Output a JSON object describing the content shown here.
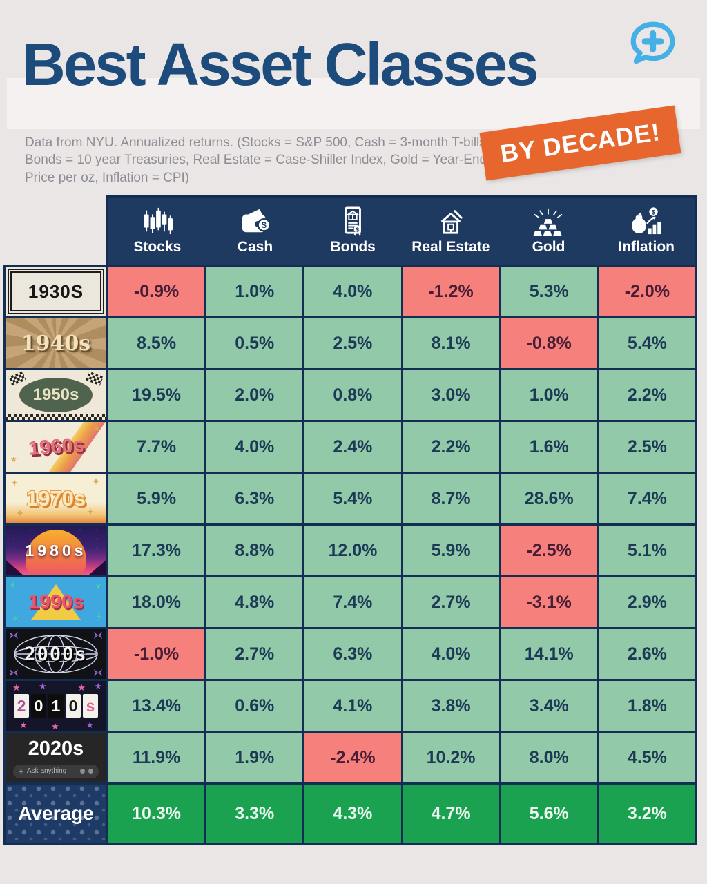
{
  "brand": {
    "icon": "speech-bubble-plus-icon",
    "color": "#45b0e5"
  },
  "header": {
    "title": "Best Asset Classes",
    "badge": "BY DECADE!",
    "subtitle": "Data from NYU. Annualized returns. (Stocks = S&P 500, Cash = 3-month T-bills, Bonds = 10 year Treasuries, Real Estate = Case-Shiller Index, Gold = Year-End Price per oz, Inflation = CPI)"
  },
  "colors": {
    "background": "#eae6e5",
    "title": "#1d4b7c",
    "badge_bg": "#e6662e",
    "header_bg": "#1e3a61",
    "grid_border": "#132e52",
    "cell_green": "#92c9a9",
    "cell_red": "#f5807c",
    "average_green": "#1aa251",
    "cell_text": "#1c3a55",
    "negative_text": "#4a1d36"
  },
  "table": {
    "columns": [
      {
        "label": "Stocks",
        "icon": "candlestick-chart-icon"
      },
      {
        "label": "Cash",
        "icon": "wallet-icon"
      },
      {
        "label": "Bonds",
        "icon": "bond-certificate-icon"
      },
      {
        "label": "Real Estate",
        "icon": "house-icon"
      },
      {
        "label": "Gold",
        "icon": "gold-bars-icon"
      },
      {
        "label": "Inflation",
        "icon": "money-bag-chart-icon"
      }
    ],
    "rows": [
      {
        "decade": "1930S",
        "values": [
          {
            "v": "-0.9%",
            "neg": true
          },
          {
            "v": "1.0%"
          },
          {
            "v": "4.0%"
          },
          {
            "v": "-1.2%",
            "neg": true
          },
          {
            "v": "5.3%"
          },
          {
            "v": "-2.0%",
            "neg": true
          }
        ]
      },
      {
        "decade": "1940s",
        "values": [
          {
            "v": "8.5%"
          },
          {
            "v": "0.5%"
          },
          {
            "v": "2.5%"
          },
          {
            "v": "8.1%"
          },
          {
            "v": "-0.8%",
            "neg": true
          },
          {
            "v": "5.4%"
          }
        ]
      },
      {
        "decade": "1950s",
        "values": [
          {
            "v": "19.5%"
          },
          {
            "v": "2.0%"
          },
          {
            "v": "0.8%"
          },
          {
            "v": "3.0%"
          },
          {
            "v": "1.0%"
          },
          {
            "v": "2.2%"
          }
        ]
      },
      {
        "decade": "1960s",
        "values": [
          {
            "v": "7.7%"
          },
          {
            "v": "4.0%"
          },
          {
            "v": "2.4%"
          },
          {
            "v": "2.2%"
          },
          {
            "v": "1.6%"
          },
          {
            "v": "2.5%"
          }
        ]
      },
      {
        "decade": "1970s",
        "values": [
          {
            "v": "5.9%"
          },
          {
            "v": "6.3%"
          },
          {
            "v": "5.4%"
          },
          {
            "v": "8.7%"
          },
          {
            "v": "28.6%"
          },
          {
            "v": "7.4%"
          }
        ]
      },
      {
        "decade": "1980s",
        "values": [
          {
            "v": "17.3%"
          },
          {
            "v": "8.8%"
          },
          {
            "v": "12.0%"
          },
          {
            "v": "5.9%"
          },
          {
            "v": "-2.5%",
            "neg": true
          },
          {
            "v": "5.1%"
          }
        ]
      },
      {
        "decade": "1990s",
        "values": [
          {
            "v": "18.0%"
          },
          {
            "v": "4.8%"
          },
          {
            "v": "7.4%"
          },
          {
            "v": "2.7%"
          },
          {
            "v": "-3.1%",
            "neg": true
          },
          {
            "v": "2.9%"
          }
        ]
      },
      {
        "decade": "2000s",
        "values": [
          {
            "v": "-1.0%",
            "neg": true
          },
          {
            "v": "2.7%"
          },
          {
            "v": "6.3%"
          },
          {
            "v": "4.0%"
          },
          {
            "v": "14.1%"
          },
          {
            "v": "2.6%"
          }
        ]
      },
      {
        "decade": "2010s",
        "chars": [
          "2",
          "0",
          "1",
          "0",
          "s"
        ],
        "values": [
          {
            "v": "13.4%"
          },
          {
            "v": "0.6%"
          },
          {
            "v": "4.1%"
          },
          {
            "v": "3.8%"
          },
          {
            "v": "3.4%"
          },
          {
            "v": "1.8%"
          }
        ]
      },
      {
        "decade": "2020s",
        "search_placeholder": "Ask anything",
        "values": [
          {
            "v": "11.9%"
          },
          {
            "v": "1.9%"
          },
          {
            "v": "-2.4%",
            "neg": true
          },
          {
            "v": "10.2%"
          },
          {
            "v": "8.0%"
          },
          {
            "v": "4.5%"
          }
        ]
      }
    ],
    "average": {
      "label": "Average",
      "values": [
        "10.3%",
        "3.3%",
        "4.3%",
        "4.7%",
        "5.6%",
        "3.2%"
      ]
    }
  },
  "chart_data": {
    "type": "table",
    "title": "Best Asset Classes BY DECADE!",
    "subtitle": "Data from NYU. Annualized returns.",
    "unit": "percent annualized return",
    "categories": [
      "1930s",
      "1940s",
      "1950s",
      "1960s",
      "1970s",
      "1980s",
      "1990s",
      "2000s",
      "2010s",
      "2020s"
    ],
    "series": [
      {
        "name": "Stocks",
        "values": [
          -0.9,
          8.5,
          19.5,
          7.7,
          5.9,
          17.3,
          18.0,
          -1.0,
          13.4,
          11.9
        ],
        "average": 10.3
      },
      {
        "name": "Cash",
        "values": [
          1.0,
          0.5,
          2.0,
          4.0,
          6.3,
          8.8,
          4.8,
          2.7,
          0.6,
          1.9
        ],
        "average": 3.3
      },
      {
        "name": "Bonds",
        "values": [
          4.0,
          2.5,
          0.8,
          2.4,
          5.4,
          12.0,
          7.4,
          6.3,
          4.1,
          -2.4
        ],
        "average": 4.3
      },
      {
        "name": "Real Estate",
        "values": [
          -1.2,
          8.1,
          3.0,
          2.2,
          8.7,
          5.9,
          2.7,
          4.0,
          3.8,
          10.2
        ],
        "average": 4.7
      },
      {
        "name": "Gold",
        "values": [
          5.3,
          -0.8,
          1.0,
          1.6,
          28.6,
          -2.5,
          -3.1,
          14.1,
          3.4,
          8.0
        ],
        "average": 5.6
      },
      {
        "name": "Inflation",
        "values": [
          -2.0,
          5.4,
          2.2,
          2.5,
          7.4,
          5.1,
          2.9,
          2.6,
          1.8,
          4.5
        ],
        "average": 3.2
      }
    ],
    "negative_cells_highlighted_red": true,
    "legend_position": "none",
    "grid": true
  }
}
